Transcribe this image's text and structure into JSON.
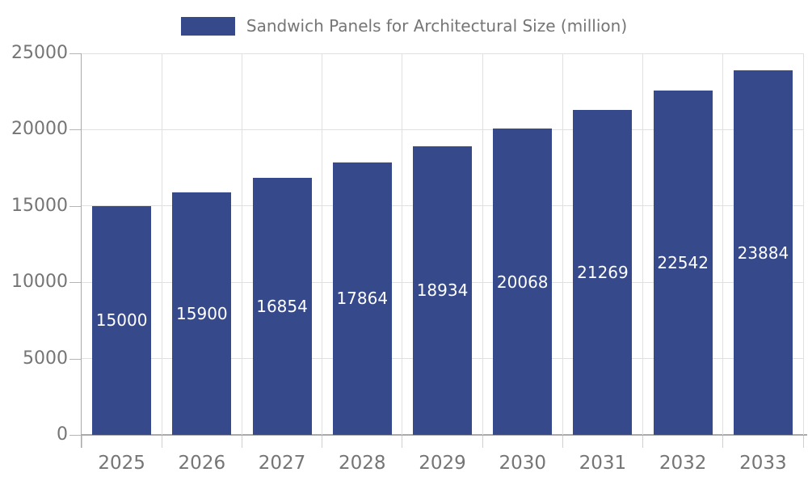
{
  "legend": {
    "label": "Sandwich Panels for Architectural Size (million)"
  },
  "chart_data": {
    "type": "bar",
    "title": "Sandwich Panels for Architectural Size (million)",
    "series_name": "Sandwich Panels for Architectural Size (million)",
    "categories": [
      "2025",
      "2026",
      "2027",
      "2028",
      "2029",
      "2030",
      "2031",
      "2032",
      "2033"
    ],
    "values": [
      15000,
      15900,
      16854,
      17864,
      18934,
      20068,
      21269,
      22542,
      23884
    ],
    "xlabel": "",
    "ylabel": "",
    "ylim": [
      0,
      25000
    ],
    "yticks": [
      0,
      5000,
      10000,
      15000,
      20000,
      25000
    ],
    "grid": true,
    "legend_position": "top-center",
    "value_labels": "inside-center",
    "value_label_color": "#ffffff"
  },
  "colors": {
    "bar": "#36498a",
    "grid": "#e0e0e0",
    "axis": "#aaaaaa",
    "tick_text": "#757575",
    "title_text": "#757575",
    "background": "#ffffff"
  }
}
